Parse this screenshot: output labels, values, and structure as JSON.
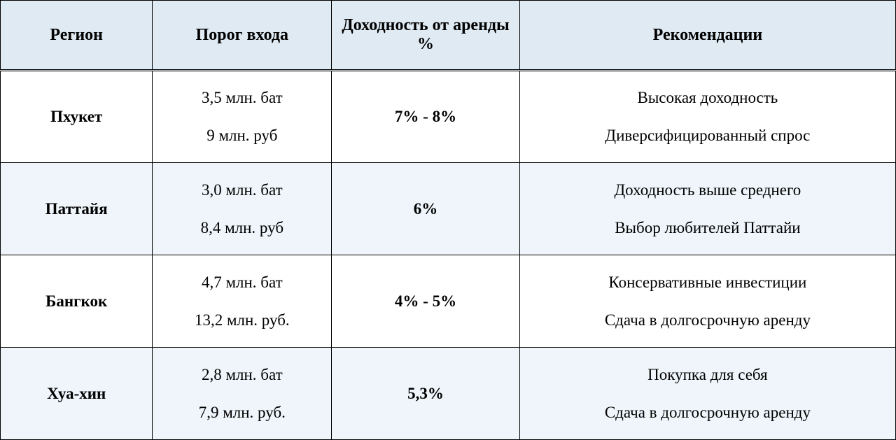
{
  "table": {
    "type": "table",
    "header_background": "#dfeaf3",
    "row_alt_background": "#eff5fa",
    "border_color": "#000000",
    "font_family": "Times New Roman",
    "header_fontsize": 24,
    "cell_fontsize": 23,
    "columns": [
      {
        "key": "region",
        "label": "Регион",
        "width_pct": 17
      },
      {
        "key": "entry",
        "label": "Порог входа",
        "width_pct": 20
      },
      {
        "key": "yield",
        "label": "Доходность от аренды %",
        "width_pct": 21
      },
      {
        "key": "rec",
        "label": "Рекомендации",
        "width_pct": 42
      }
    ],
    "rows": [
      {
        "region": "Пхукет",
        "entry_line1": "3,5 млн. бат",
        "entry_line2": "9 млн. руб",
        "yield": "7% - 8%",
        "rec_line1": "Высокая доходность",
        "rec_line2": "Диверсифицированный спрос"
      },
      {
        "region": "Паттайя",
        "entry_line1": "3,0 млн. бат",
        "entry_line2": "8,4 млн. руб",
        "yield": "6%",
        "rec_line1": "Доходность выше среднего",
        "rec_line2": "Выбор любителей Паттайи"
      },
      {
        "region": "Бангкок",
        "entry_line1": "4,7 млн. бат",
        "entry_line2": "13,2 млн. руб.",
        "yield": "4% - 5%",
        "rec_line1": "Консервативные инвестиции",
        "rec_line2": "Сдача в долгосрочную аренду"
      },
      {
        "region": "Хуа-хин",
        "entry_line1": "2,8 млн. бат",
        "entry_line2": "7,9 млн. руб.",
        "yield": "5,3%",
        "rec_line1": "Покупка для себя",
        "rec_line2": "Сдача в долгосрочную аренду"
      }
    ]
  }
}
